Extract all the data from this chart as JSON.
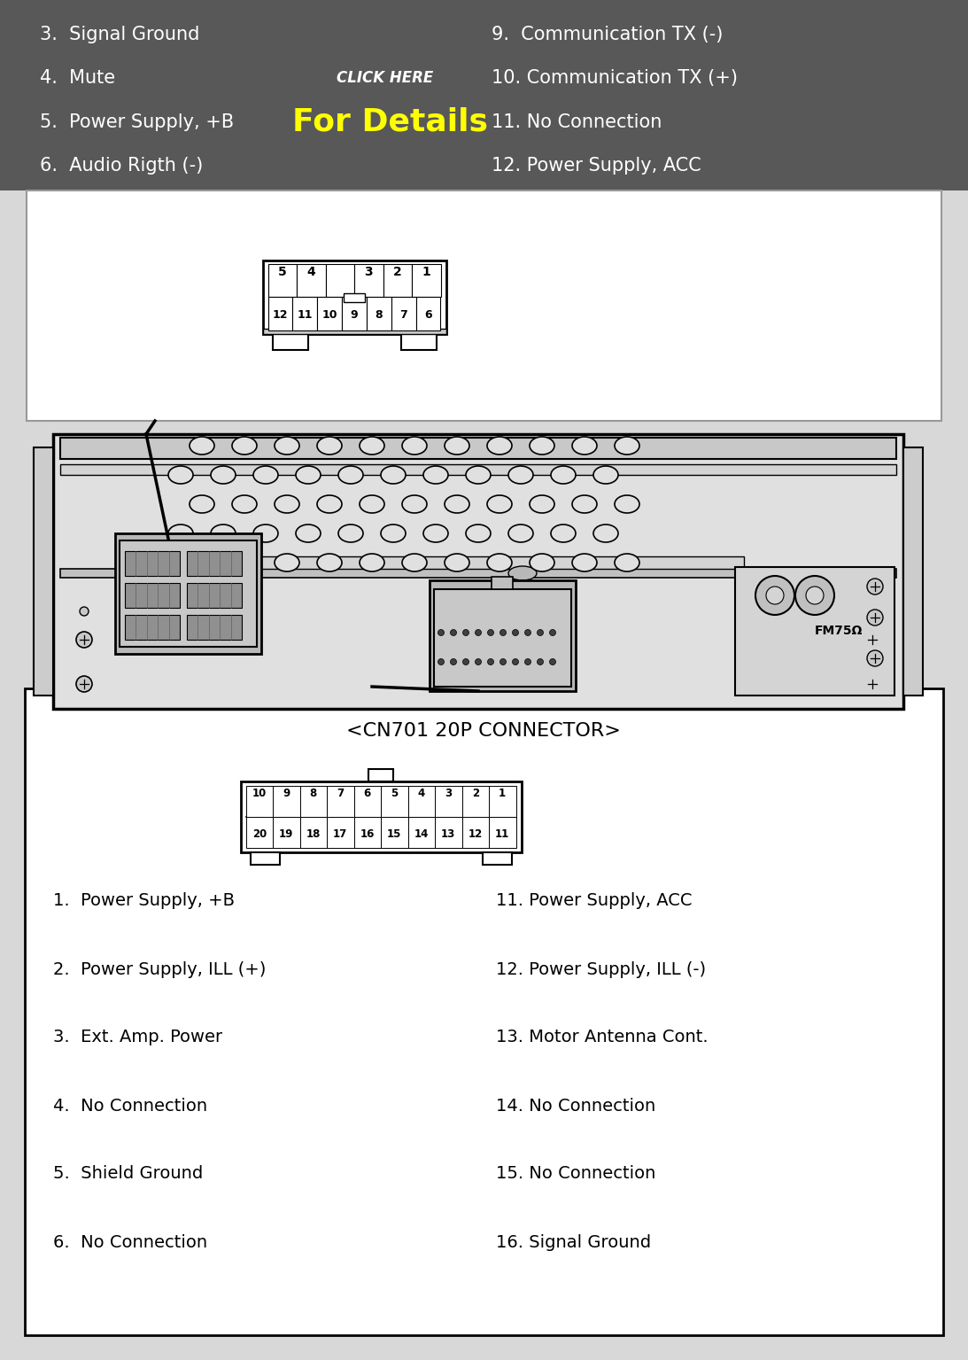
{
  "bg_top_color": "#585858",
  "bg_white_color": "#f2f2f2",
  "top_text_lines": [
    [
      "3.  Signal Ground",
      "9.  Communication TX (-)"
    ],
    [
      "4.  Mute",
      "10. Communication TX (+)"
    ],
    [
      "5.  Power Supply, +B",
      "11. No Connection"
    ],
    [
      "6.  Audio Rigth (-)",
      "12. Power Supply, ACC"
    ]
  ],
  "click_here_text": "CLICK HERE",
  "for_details_text": "For Details",
  "connector_label": "<CN701 20P CONNECTOR>",
  "bottom_left_items": [
    "1.  Power Supply, +B",
    "2.  Power Supply, ILL (+)",
    "3.  Ext. Amp. Power",
    "4.  No Connection",
    "5.  Shield Ground",
    "6.  No Connection"
  ],
  "bottom_right_items": [
    "11. Power Supply, ACC",
    "12. Power Supply, ILL (-)",
    "13. Motor Antenna Cont.",
    "14. No Connection",
    "15. No Connection",
    "16. Signal Ground"
  ],
  "top_conn_row1": [
    "5",
    "4",
    "",
    "3",
    "2",
    "1"
  ],
  "top_conn_row2": [
    "12",
    "11",
    "10",
    "9",
    "8",
    "7",
    "6"
  ],
  "bot_conn_row1": [
    "10",
    "9",
    "8",
    "7",
    "6",
    "5",
    "4",
    "3",
    "2",
    "1"
  ],
  "bot_conn_row2": [
    "20",
    "19",
    "18",
    "17",
    "16",
    "15",
    "14",
    "13",
    "12",
    "11"
  ]
}
